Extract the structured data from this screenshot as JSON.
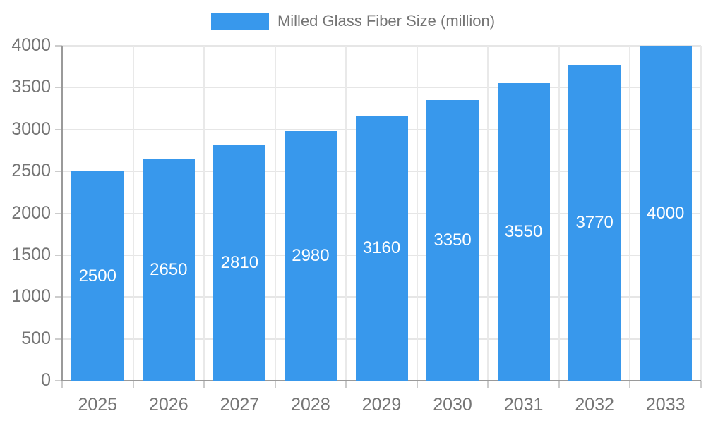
{
  "legend": {
    "label": "Milled Glass Fiber Size (million)",
    "swatch_color": "#3898ec"
  },
  "chart_data": {
    "type": "bar",
    "title": "Milled Glass Fiber Size (million)",
    "series_name": "Milled Glass Fiber Size (million)",
    "categories": [
      "2025",
      "2026",
      "2027",
      "2028",
      "2029",
      "2030",
      "2031",
      "2032",
      "2033"
    ],
    "values": [
      2500,
      2650,
      2810,
      2980,
      3160,
      3350,
      3550,
      3770,
      4000
    ],
    "bar_labels": [
      "2500",
      "2650",
      "2810",
      "2980",
      "3160",
      "3350",
      "3550",
      "3770",
      "4000"
    ],
    "xlabel": "",
    "ylabel": "",
    "ylim": [
      0,
      4000
    ],
    "yticks": [
      0,
      500,
      1000,
      1500,
      2000,
      2500,
      3000,
      3500,
      4000
    ],
    "grid": true,
    "legend_position": "top-center",
    "bar_color": "#3898ec",
    "bar_label_color": "#ffffff",
    "axis_text_color": "#757575",
    "axis_line_color": "#9a9a9a",
    "gridline_color": "#e6e6e6"
  }
}
